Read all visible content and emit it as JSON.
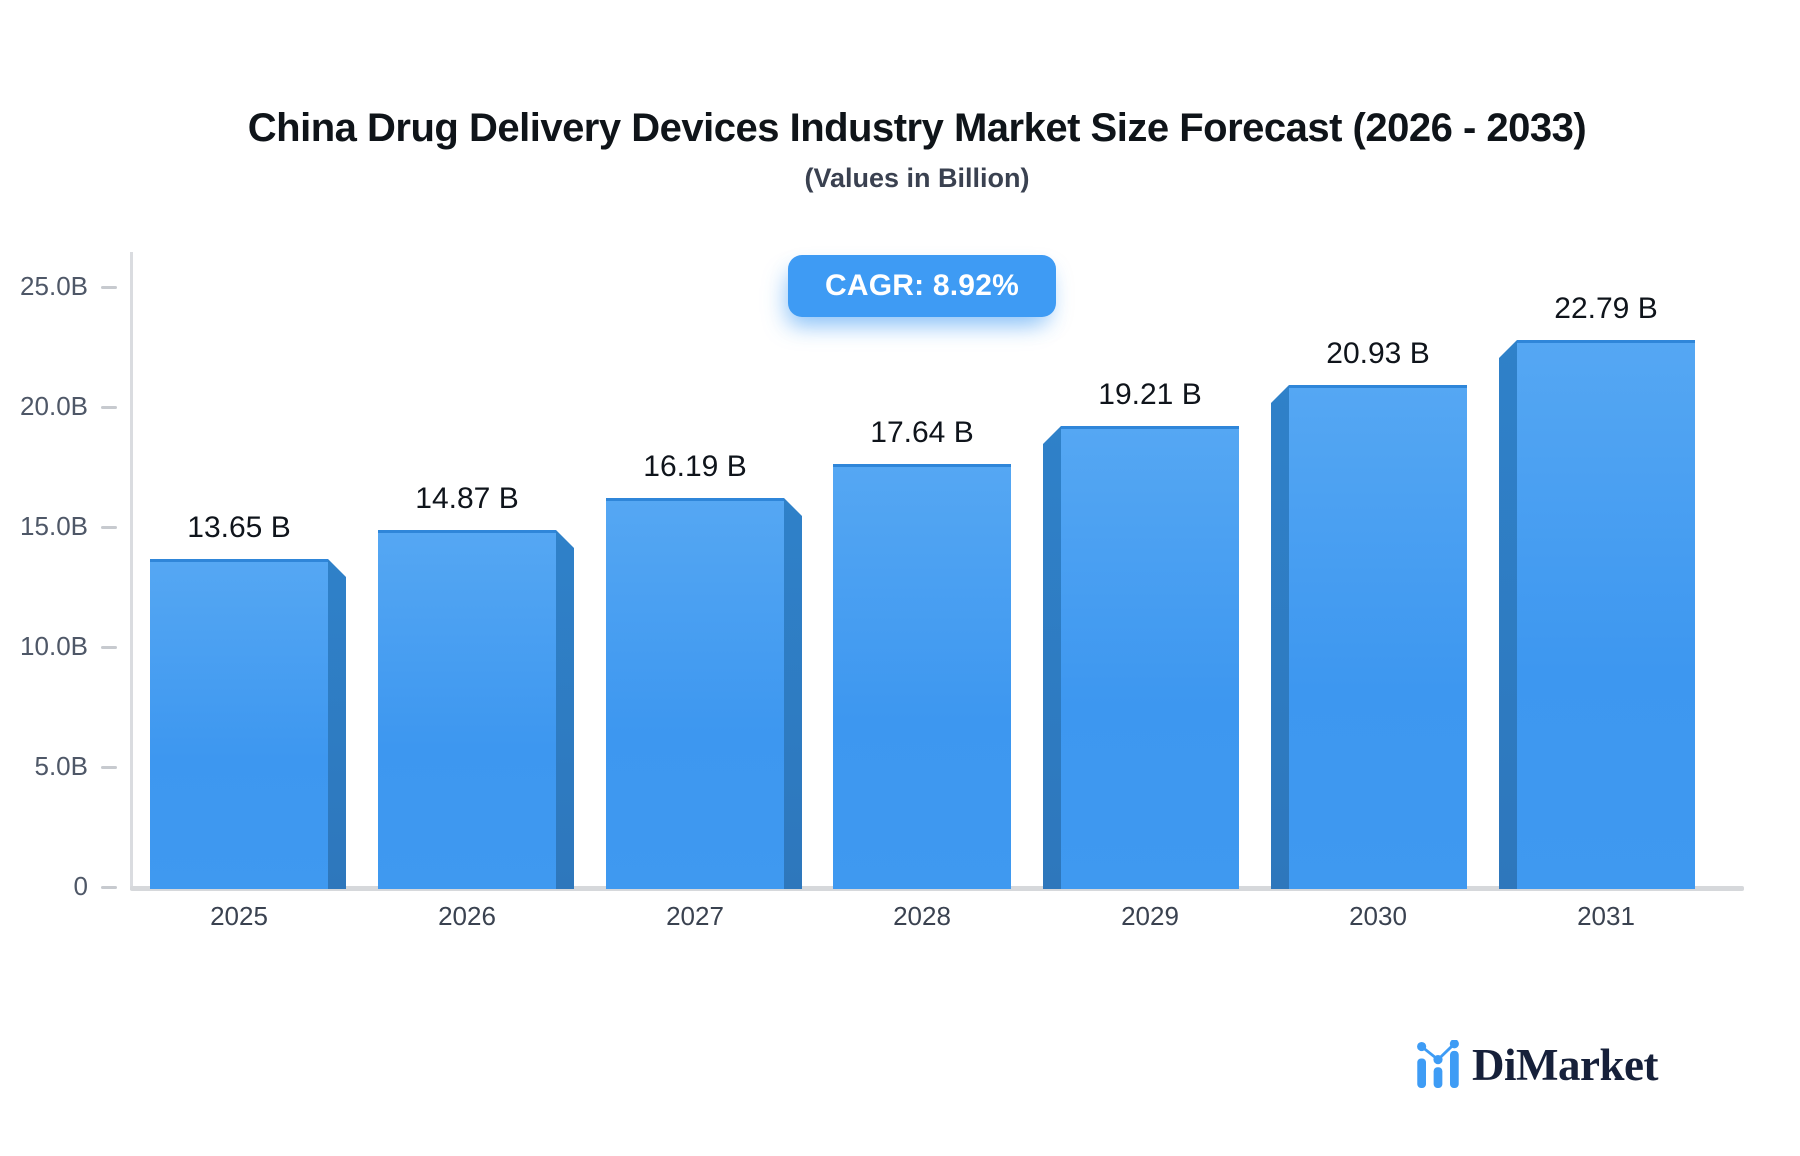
{
  "title": "China Drug Delivery Devices Industry Market Size Forecast (2026 - 2033)",
  "subtitle": "(Values in Billion)",
  "badge": {
    "label": "CAGR: 8.92%"
  },
  "chart_data": {
    "type": "bar",
    "title": "China Drug Delivery Devices Industry Market Size Forecast (2026 - 2033)",
    "subtitle": "(Values in Billion)",
    "cagr_annotation": "CAGR: 8.92%",
    "categories": [
      "2025",
      "2026",
      "2027",
      "2028",
      "2029",
      "2030",
      "2031"
    ],
    "values": [
      13.65,
      14.87,
      16.19,
      17.64,
      19.21,
      20.93,
      22.79
    ],
    "value_labels": [
      "13.65 B",
      "14.87 B",
      "16.19 B",
      "17.64 B",
      "19.21 B",
      "20.93 B",
      "22.79 B"
    ],
    "unit": "Billion",
    "xlabel": "",
    "ylabel": "",
    "ylim": [
      0,
      25
    ],
    "y_ticks": [
      {
        "label": "25.0B",
        "value": 25
      },
      {
        "label": "20.0B",
        "value": 20
      },
      {
        "label": "15.0B",
        "value": 15
      },
      {
        "label": "10.0B",
        "value": 10
      },
      {
        "label": "5.0B",
        "value": 5
      },
      {
        "label": "0",
        "value": 0
      }
    ],
    "grid": false,
    "legend_position": "none",
    "bar_color": "#3E9BF3",
    "bar_side_color": "#2E79BF",
    "bar_top_edge_color": "#2F86D9"
  },
  "logo": {
    "text": "DiMarket",
    "icon": "bar-chart-logo-icon",
    "color": "#16203A",
    "accent": "#3E9CF5"
  },
  "colors": {
    "accent_blue": "#3E9BF4",
    "axis_gray": "#D6D8DB",
    "title_text": "#0F1419",
    "subtitle_text": "#3A4150",
    "tick_text": "#4E5767"
  }
}
